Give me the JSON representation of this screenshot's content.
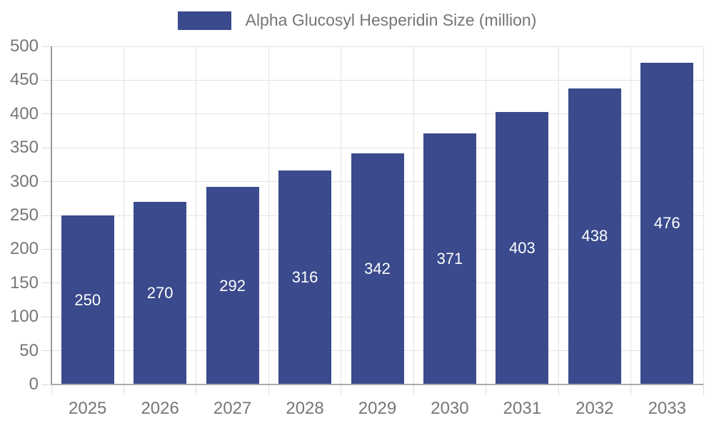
{
  "legend": {
    "label": "Alpha Glucosyl Hesperidin Size (million)",
    "swatch_color": "#3a4a8c"
  },
  "chart_data": {
    "type": "bar",
    "title": "Alpha Glucosyl Hesperidin Size (million)",
    "categories": [
      "2025",
      "2026",
      "2027",
      "2028",
      "2029",
      "2030",
      "2031",
      "2032",
      "2033"
    ],
    "values": [
      250,
      270,
      292,
      316,
      342,
      371,
      403,
      438,
      476
    ],
    "value_labels": [
      "250",
      "270",
      "292",
      "316",
      "342",
      "371",
      "403",
      "438",
      "476"
    ],
    "xlabel": "",
    "ylabel": "",
    "ylim": [
      0,
      500
    ],
    "yticks": [
      0,
      50,
      100,
      150,
      200,
      250,
      300,
      350,
      400,
      450,
      500
    ],
    "grid": true,
    "legend_position": "top",
    "bar_color": "#3a4a8c",
    "value_label_color": "#ffffff",
    "axis_text_color": "#767676",
    "grid_color": "#e2e2e2",
    "axis_line_color": "#9a9a9a"
  }
}
